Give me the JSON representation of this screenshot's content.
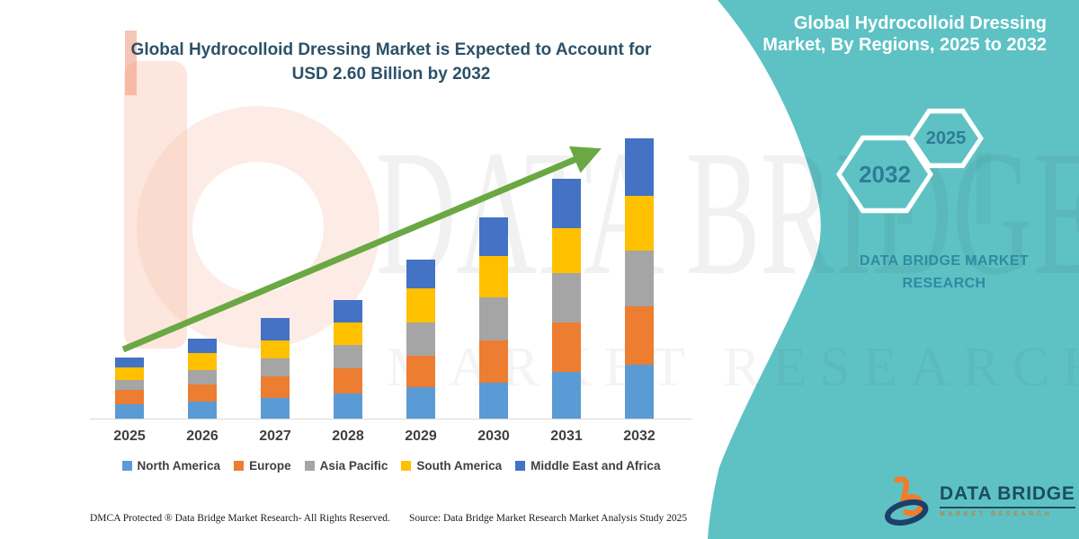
{
  "title": {
    "line1": "Global Hydrocolloid Dressing Market is Expected to Account for",
    "line2": "USD 2.60 Billion by 2032"
  },
  "side_panel": {
    "heading_line1": "Global Hydrocolloid Dressing",
    "heading_line2": "Market, By Regions, 2025 to 2032",
    "hexagons": [
      {
        "label": "2032"
      },
      {
        "label": "2025"
      }
    ],
    "brand_line1": "DATA BRIDGE MARKET",
    "brand_line2": "RESEARCH",
    "bg_color": "#5ec2c4",
    "brand_text_color": "#2f8ba1"
  },
  "watermark": {
    "line1": "DATA BRIDGE",
    "line2": "MARKET RESEARCH"
  },
  "chart_data": {
    "type": "bar",
    "stacked": true,
    "title": "Global Hydrocolloid Dressing Market is Expected to Account for USD 2.60 Billion by 2032",
    "unit": "USD Billion",
    "categories": [
      "2025",
      "2026",
      "2027",
      "2028",
      "2029",
      "2030",
      "2031",
      "2032"
    ],
    "series": [
      {
        "name": "North America",
        "color": "#5b9bd5",
        "values": [
          0.13,
          0.16,
          0.19,
          0.23,
          0.29,
          0.33,
          0.43,
          0.5
        ]
      },
      {
        "name": "Europe",
        "color": "#ed7d31",
        "values": [
          0.13,
          0.16,
          0.2,
          0.23,
          0.29,
          0.39,
          0.46,
          0.54
        ]
      },
      {
        "name": "Asia Pacific",
        "color": "#a5a5a5",
        "values": [
          0.09,
          0.13,
          0.17,
          0.22,
          0.31,
          0.4,
          0.46,
          0.52
        ]
      },
      {
        "name": "South America",
        "color": "#ffc000",
        "values": [
          0.12,
          0.16,
          0.17,
          0.21,
          0.32,
          0.38,
          0.42,
          0.51
        ]
      },
      {
        "name": "Middle East and Africa",
        "color": "#4472c4",
        "values": [
          0.09,
          0.13,
          0.21,
          0.21,
          0.27,
          0.36,
          0.46,
          0.53
        ]
      }
    ],
    "totals": [
      0.56,
      0.74,
      0.94,
      1.1,
      1.48,
      1.86,
      2.23,
      2.6
    ],
    "xlabel": "",
    "ylabel": "",
    "y_axis_visible": false,
    "grid": false,
    "legend_position": "bottom",
    "trend_arrow_color": "#6aa843"
  },
  "footer": {
    "dmca": "DMCA Protected ® Data Bridge Market Research-  All Rights Reserved.",
    "source": "Source: Data Bridge Market Research  Market Analysis Study 2025"
  },
  "logo": {
    "name": "DATA BRIDGE",
    "subtitle": "MARKET RESEARCH"
  }
}
